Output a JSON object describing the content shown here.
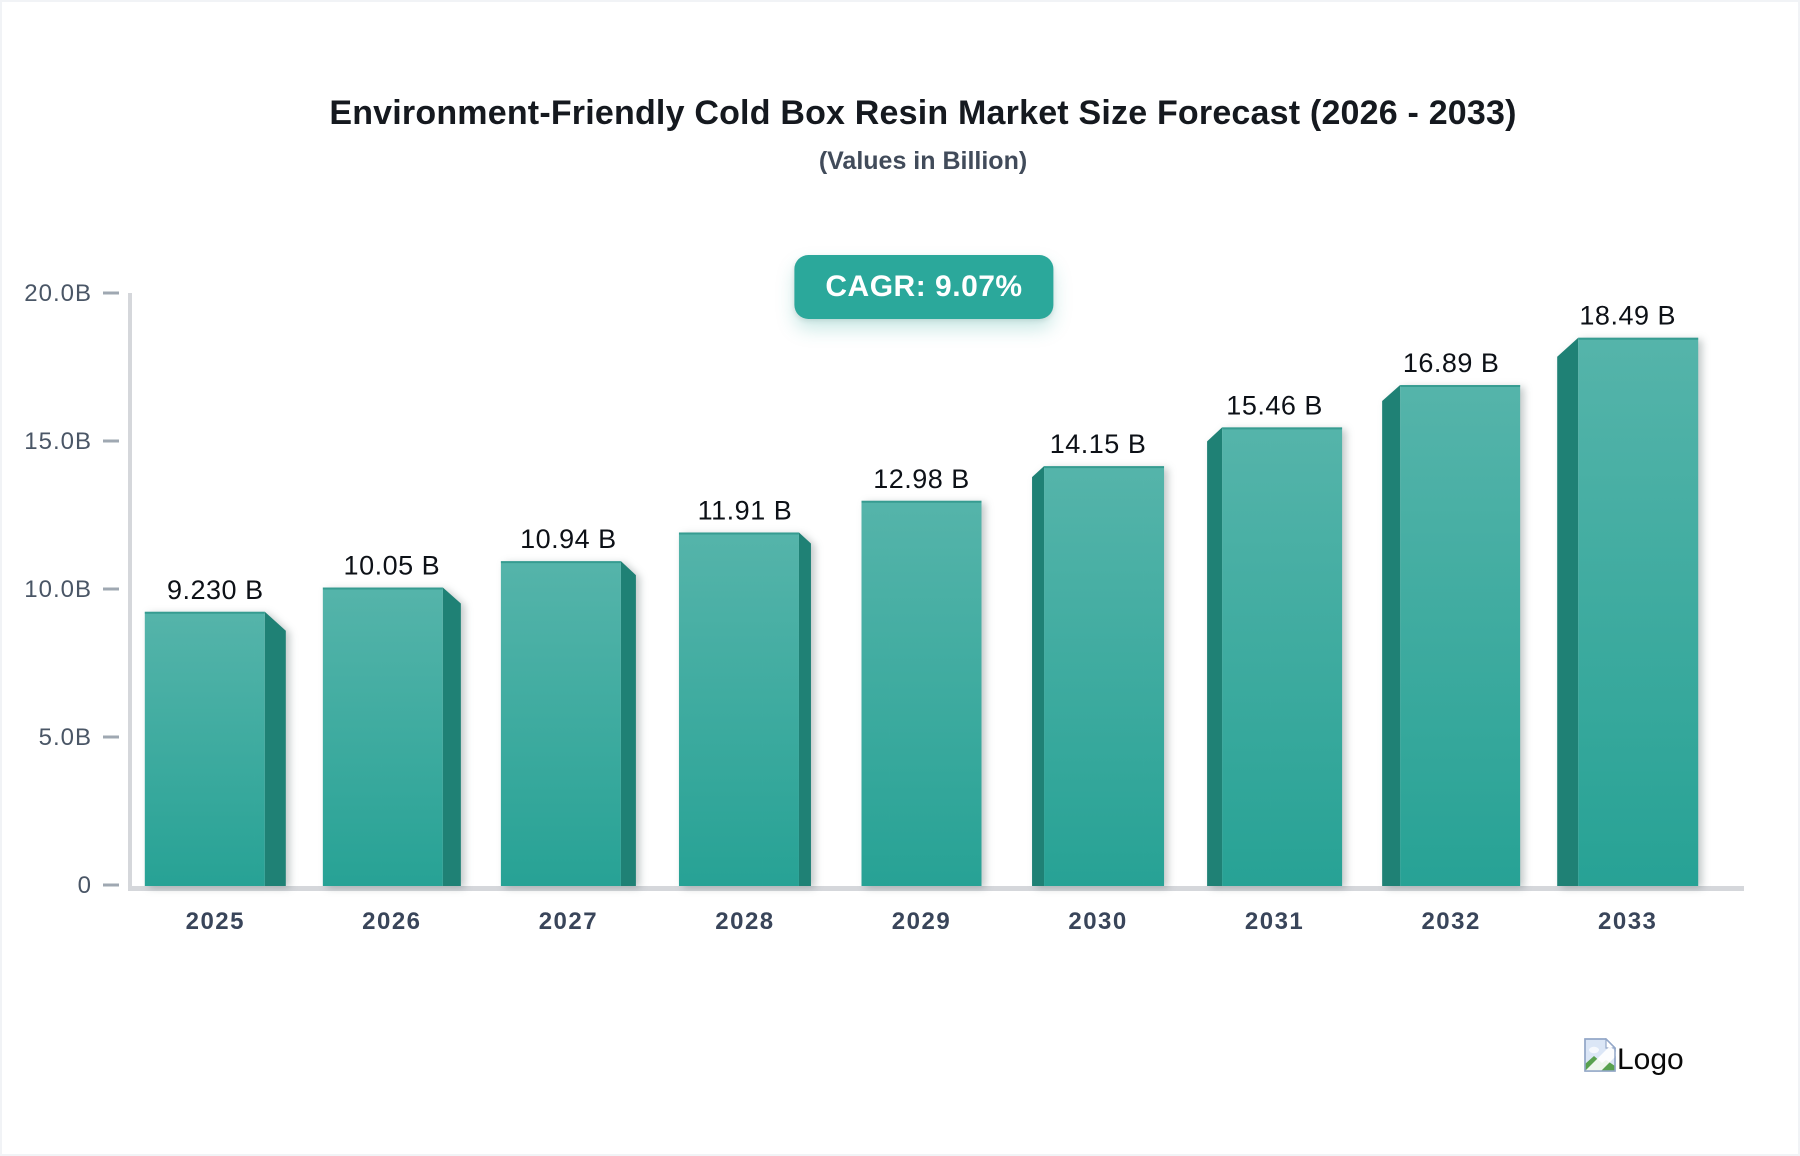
{
  "header": {
    "title": "Environment-Friendly Cold Box Resin Market Size Forecast (2026 - 2033)",
    "subtitle": "(Values in Billion)"
  },
  "badge": {
    "label": "CAGR: 9.07%",
    "background": "#2BA89B",
    "text_color": "#FFFFFF"
  },
  "chart_data": {
    "type": "bar",
    "title": "Environment-Friendly Cold Box Resin Market Size Forecast (2026 - 2033)",
    "subtitle": "(Values in Billion)",
    "unit": "Billion",
    "categories": [
      "2025",
      "2026",
      "2027",
      "2028",
      "2029",
      "2030",
      "2031",
      "2032",
      "2033"
    ],
    "values": [
      9.23,
      10.05,
      10.94,
      11.91,
      12.98,
      14.15,
      15.46,
      16.89,
      18.49
    ],
    "value_labels": [
      "9.230 B",
      "10.05 B",
      "10.94 B",
      "11.91 B",
      "12.98 B",
      "14.15 B",
      "15.46 B",
      "16.89 B",
      "18.49 B"
    ],
    "ylim": [
      0,
      20
    ],
    "y_ticks": [
      {
        "value": 0,
        "label": "0"
      },
      {
        "value": 5,
        "label": "5.0B"
      },
      {
        "value": 10,
        "label": "10.0B"
      },
      {
        "value": 15,
        "label": "15.0B"
      },
      {
        "value": 20,
        "label": "20.0B"
      }
    ],
    "grid": false,
    "legend": "none",
    "colors": {
      "bar_top": "#55B4AA",
      "bar_bottom": "#27A295",
      "bar_side": "#1F8175",
      "bar_top_edge": "#1E8A7E",
      "axis_line": "#D5D7DB",
      "tick_dash": "#9FA8B2",
      "y_label": "#4A5666",
      "x_label": "#39455A",
      "value_label": "#0D1117"
    }
  },
  "logo": {
    "alt": "Logo"
  }
}
